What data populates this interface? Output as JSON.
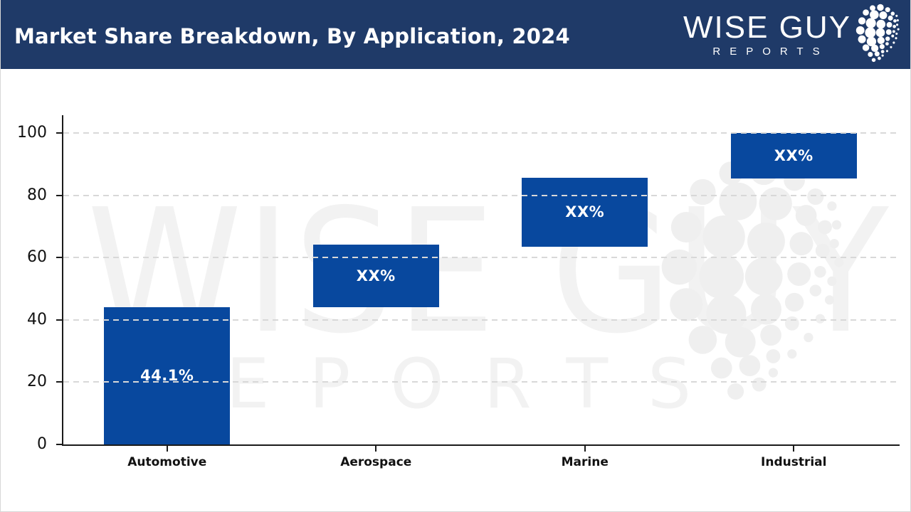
{
  "header": {
    "title": "Market Share Breakdown, By Application, 2024",
    "bg_color": "#1f3a68",
    "brand": {
      "line1": "WISE GUY",
      "line2": "REPORTS"
    }
  },
  "watermark": {
    "line1": "WISE GUY",
    "line2": "REPORTS"
  },
  "chart_data": {
    "type": "bar",
    "subtype": "floating-waterfall",
    "title": "Market Share Breakdown, By Application, 2024",
    "categories": [
      "Automotive",
      "Aerospace",
      "Marine",
      "Industrial"
    ],
    "series": [
      {
        "name": "Market share (%)",
        "segments": [
          {
            "category": "Automotive",
            "start": 0,
            "end": 44.1,
            "label": "44.1%"
          },
          {
            "category": "Aerospace",
            "start": 44.1,
            "end": 64.2,
            "label": "XX%"
          },
          {
            "category": "Marine",
            "start": 63.5,
            "end": 85.6,
            "label": "XX%"
          },
          {
            "category": "Industrial",
            "start": 85.5,
            "end": 100,
            "label": "XX%"
          }
        ]
      }
    ],
    "xlabel": "",
    "ylabel": "",
    "ylim": [
      0,
      100
    ],
    "yticks": [
      0,
      20,
      40,
      60,
      80,
      100
    ],
    "grid": "horizontal-dashed",
    "legend": "none",
    "bar_color": "#08489e",
    "bar_label_color": "#ffffff",
    "axis_color": "#1a1a1a",
    "grid_color": "#d8d8d8"
  }
}
